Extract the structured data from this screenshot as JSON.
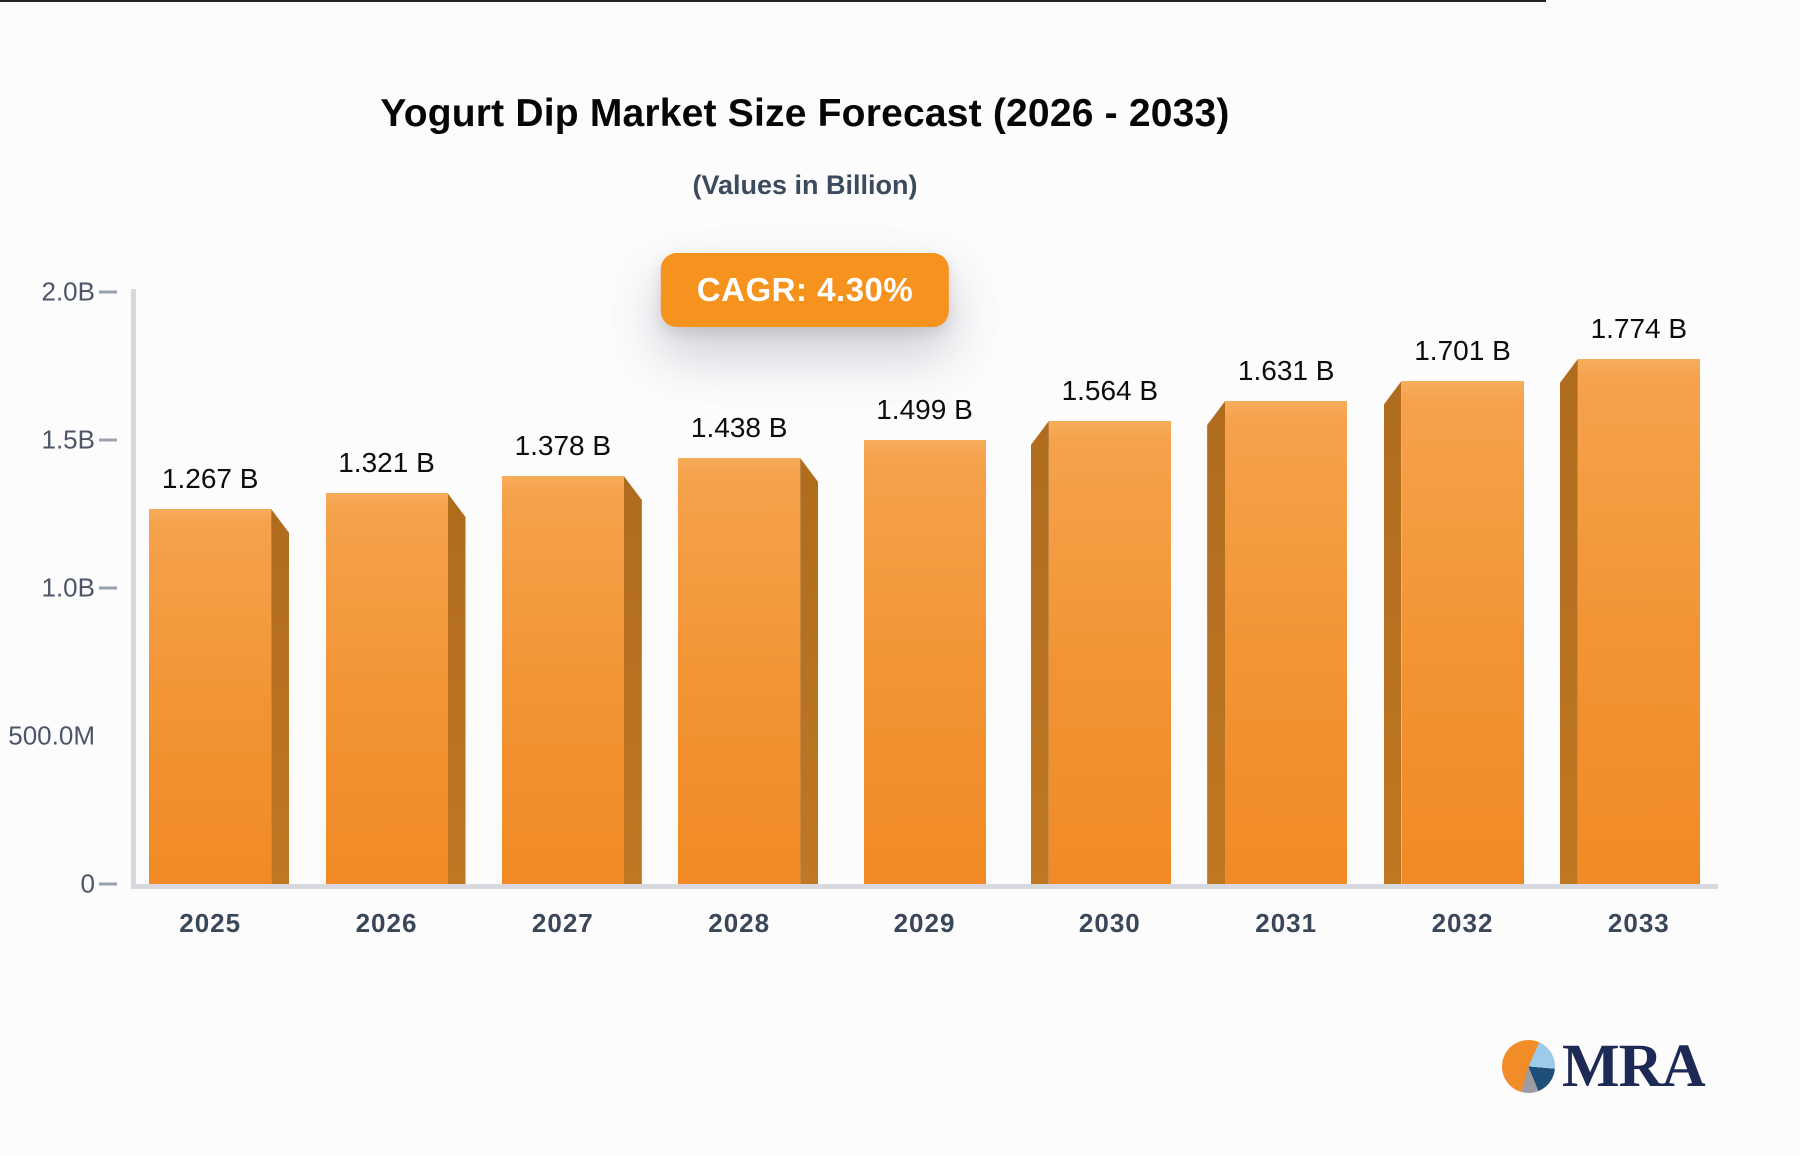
{
  "chart_data": {
    "type": "bar",
    "title": "Yogurt Dip Market Size Forecast (2026 - 2033)",
    "subtitle": "(Values in Billion)",
    "cagr_label": "CAGR: 4.30%",
    "categories": [
      "2025",
      "2026",
      "2027",
      "2028",
      "2029",
      "2030",
      "2031",
      "2032",
      "2033"
    ],
    "values": [
      1.267,
      1.321,
      1.378,
      1.438,
      1.499,
      1.564,
      1.631,
      1.701,
      1.774
    ],
    "value_labels": [
      "1.267 B",
      "1.321 B",
      "1.378 B",
      "1.438 B",
      "1.499 B",
      "1.564 B",
      "1.631 B",
      "1.701 B",
      "1.774 B"
    ],
    "unit": "Billion",
    "xlabel": "",
    "ylabel": "",
    "ylim": [
      0,
      2.0
    ],
    "grid": "off",
    "legend": "none",
    "yticks": [
      {
        "label": "2.0B",
        "value": 2.0,
        "tick": true
      },
      {
        "label": "1.5B",
        "value": 1.5,
        "tick": true
      },
      {
        "label": "1.0B",
        "value": 1.0,
        "tick": true
      },
      {
        "label": "500.0M",
        "value": 0.5,
        "tick": false
      },
      {
        "label": "0",
        "value": 0.0,
        "tick": true
      }
    ],
    "layout": {
      "bar_3d": true,
      "shade_side": [
        "right",
        "right",
        "right",
        "right",
        "none",
        "left",
        "left",
        "left",
        "left"
      ]
    },
    "colors": {
      "bar_face_top": "#F5A24B",
      "bar_face_bottom": "#F18A25",
      "bar_shade": "#B46F1F",
      "badge_background": "#F6921E",
      "badge_text": "#FFFFFF",
      "axis_line": "#D8D9DF",
      "tick_mark": "#97A1AF",
      "ytick_text": "#4C5668",
      "xtick_text": "#3A4759",
      "value_text": "#0C0C0C",
      "title_text": "#060606",
      "subtitle_text": "#3C4A5E"
    }
  },
  "logo": {
    "brand": "MRA",
    "pie_colors": {
      "orange": "#F28C28",
      "light_blue": "#9DCBEA",
      "navy": "#1F4E79",
      "gray": "#9C9CA2"
    }
  }
}
